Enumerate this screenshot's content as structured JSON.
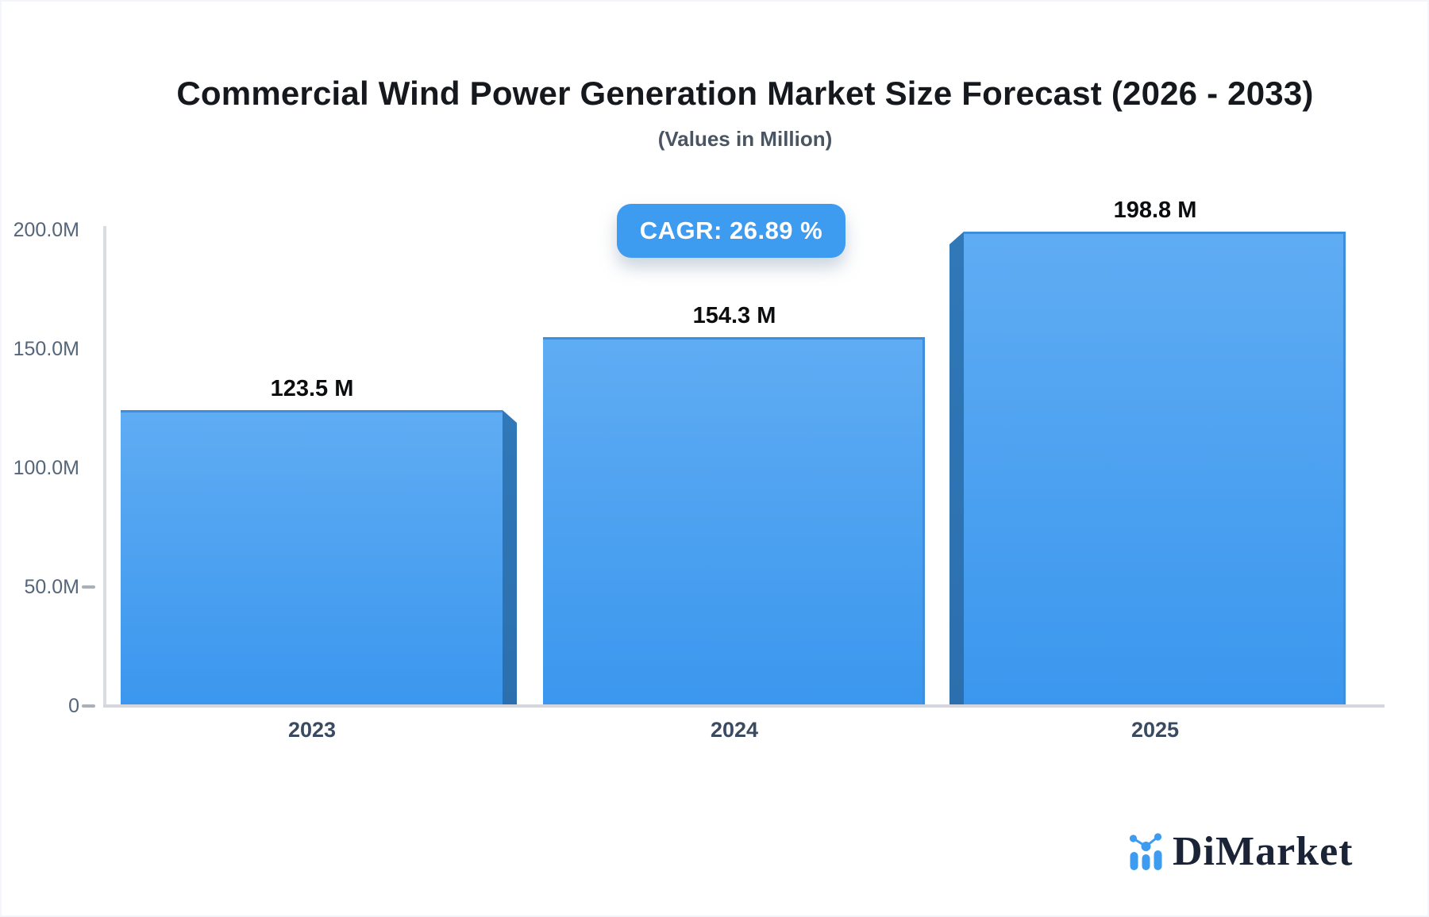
{
  "header": {
    "title": "Commercial Wind Power Generation Market Size Forecast (2026 - 2033)",
    "subtitle": "(Values in Million)"
  },
  "badge": {
    "label": "CAGR: 26.89 %"
  },
  "chart_data": {
    "type": "bar",
    "title": "Commercial Wind Power Generation Market Size Forecast (2026 - 2033)",
    "subtitle": "(Values in Million)",
    "unit": "Million",
    "cagr": "26.89 %",
    "categories": [
      "2023",
      "2024",
      "2025"
    ],
    "values": [
      123.5,
      154.3,
      198.8
    ],
    "value_labels": [
      "123.5 M",
      "154.3 M",
      "198.8 M"
    ],
    "ylabel": "",
    "xlabel": "",
    "ylim": [
      0,
      200
    ],
    "y_ticks": [
      "200.0M",
      "150.0M",
      "100.0M",
      "50.0M",
      "0"
    ],
    "grid": false,
    "legend": false,
    "colors": {
      "bar_top": "#5facf3",
      "bar_bottom": "#3b97ee",
      "bar_side": "#2e75b5",
      "badge_bg": "#3d9bf0",
      "axis_line": "#d9dde3",
      "tick_text": "#55657a"
    }
  },
  "axis": {
    "y": [
      "200.0M",
      "150.0M",
      "100.0M",
      "50.0M",
      "0"
    ]
  },
  "logo": {
    "text": "DiMarket",
    "icon": "bar-line-chart-icon"
  }
}
